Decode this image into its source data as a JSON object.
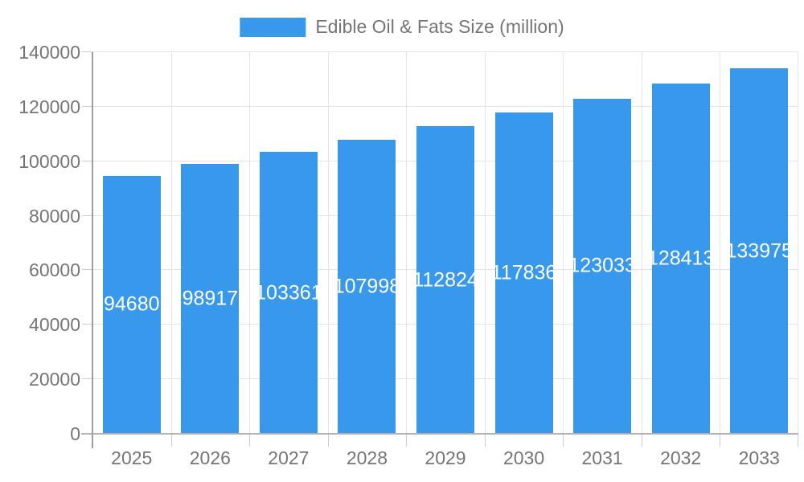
{
  "legend": {
    "label": "Edible Oil & Fats Size (million)",
    "swatch_color": "#3899EC",
    "position": "top"
  },
  "chart_data": {
    "type": "bar",
    "title": "Edible Oil & Fats Size (million)",
    "categories": [
      "2025",
      "2026",
      "2027",
      "2028",
      "2029",
      "2030",
      "2031",
      "2032",
      "2033"
    ],
    "values": [
      94680,
      98917,
      103361,
      107998,
      112824,
      117836,
      123033,
      128413,
      133975
    ],
    "bar_labels": [
      "94680",
      "98917",
      "103361",
      "107998",
      "112824",
      "117836",
      "123033",
      "128413",
      "133975"
    ],
    "y_tick_labels": [
      "0",
      "20000",
      "40000",
      "60000",
      "80000",
      "100000",
      "120000",
      "140000"
    ],
    "xlabel": "",
    "ylabel": "",
    "ylim": [
      0,
      140000
    ],
    "y_tick_step": 20000,
    "grid": "on",
    "legend_position": "top",
    "bar_color": "#3899EC",
    "bar_label_color": "#ffffff",
    "axis_text_color": "#757575",
    "gridline_color": "#e4e4e4",
    "axis_line_color": "#b3b3b3"
  }
}
